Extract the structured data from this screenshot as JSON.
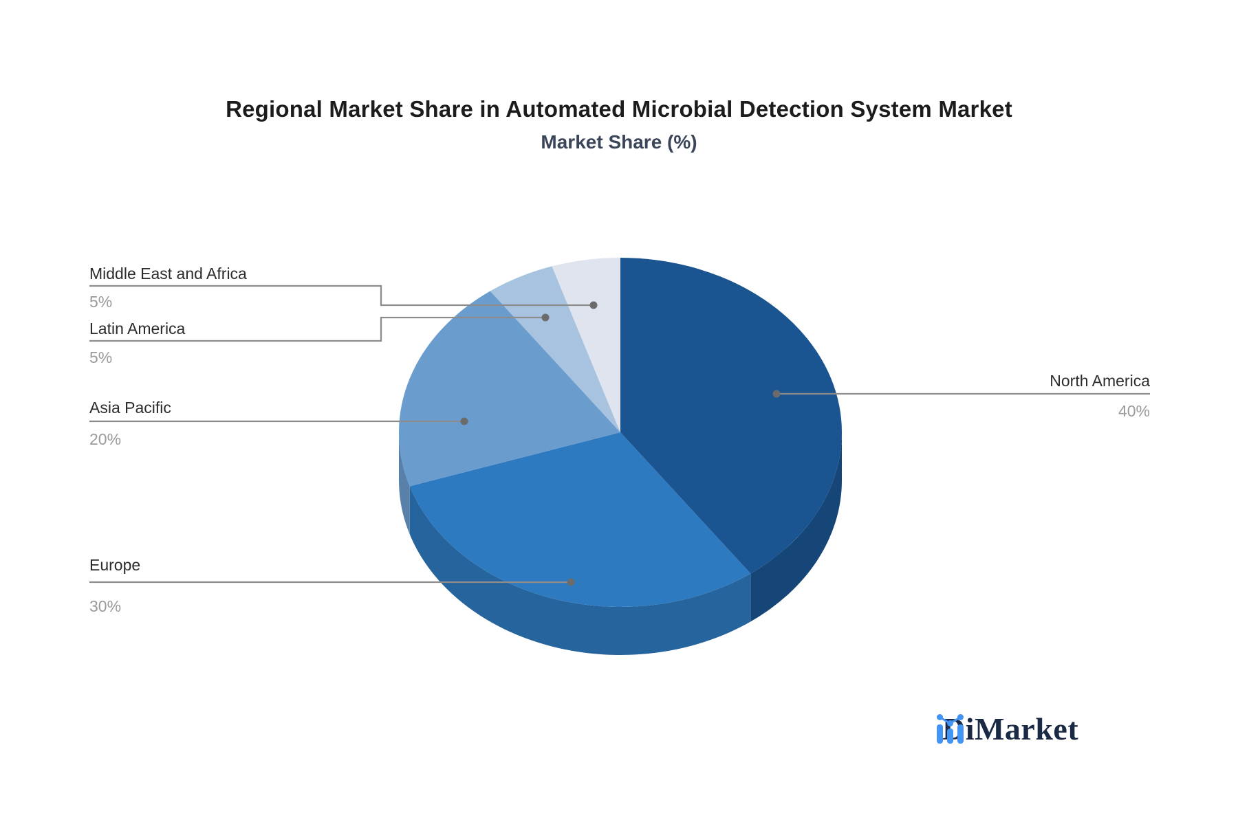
{
  "title": "Regional Market Share in Automated Microbial Detection System Market",
  "subtitle": "Market Share (%)",
  "logo": {
    "text": "DiMarket",
    "icon": "bar-line-chart-icon"
  },
  "chart_data": {
    "type": "pie",
    "style": "3d",
    "title": "Regional Market Share in Automated Microbial Detection System Market",
    "subtitle": "Market Share (%)",
    "unit": "%",
    "start_angle": "top",
    "direction": "clockwise",
    "legend_position": "callout-labels",
    "categories": [
      "North America",
      "Europe",
      "Asia Pacific",
      "Latin America",
      "Middle East and Africa"
    ],
    "values": [
      40,
      30,
      20,
      5,
      5
    ],
    "slices": [
      {
        "label": "North America",
        "value": 40,
        "pct_label": "40%",
        "color": "#1B5591"
      },
      {
        "label": "Europe",
        "value": 30,
        "pct_label": "30%",
        "color": "#2E7AC0"
      },
      {
        "label": "Asia Pacific",
        "value": 20,
        "pct_label": "20%",
        "color": "#6B9CCE"
      },
      {
        "label": "Latin America",
        "value": 5,
        "pct_label": "5%",
        "color": "#A8C3E0"
      },
      {
        "label": "Middle East and Africa",
        "value": 5,
        "pct_label": "5%",
        "color": "#DFE4EE"
      }
    ],
    "colors": {
      "line": "#8C8C8C",
      "dot": "#6B6B6B",
      "label_text": "#2B2B2B",
      "pct_text": "#9A9A9A"
    }
  }
}
